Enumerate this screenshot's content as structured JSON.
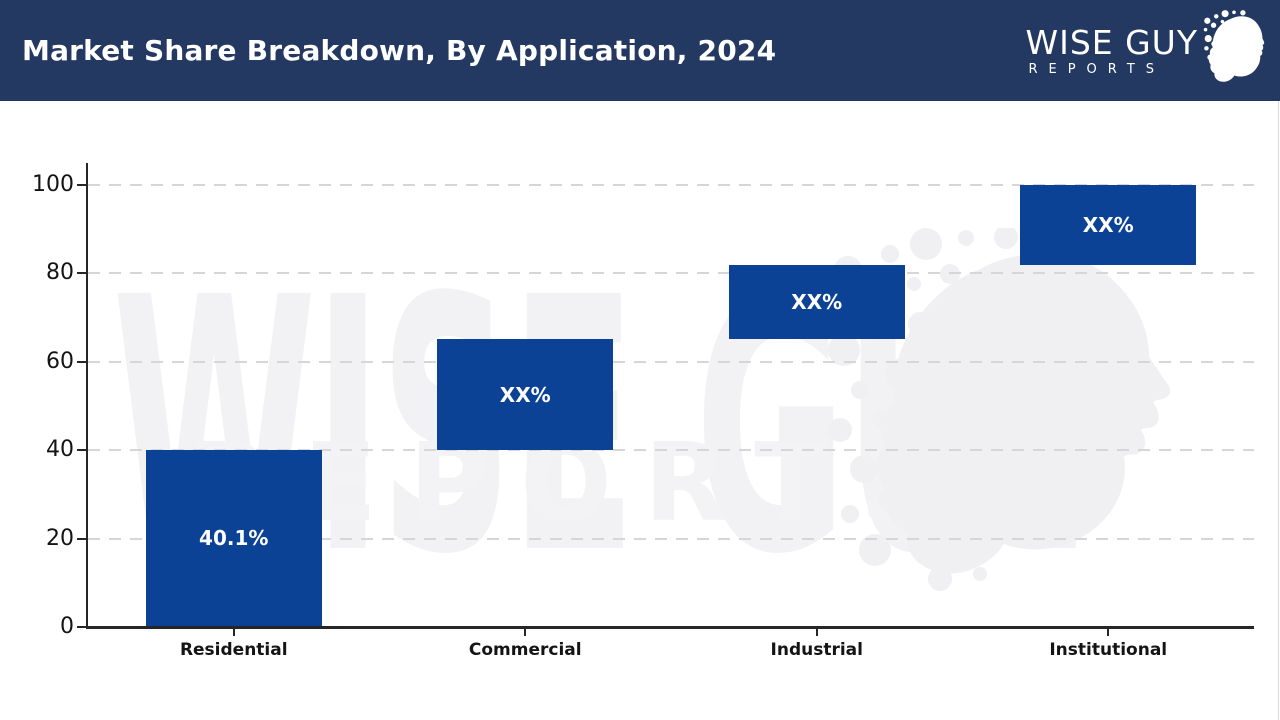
{
  "header": {
    "title": "Market Share Breakdown, By Application, 2024",
    "logo": {
      "line1": "WISE GUY",
      "line2": "REPORTS"
    }
  },
  "watermark": {
    "line1": "WISE GUY",
    "line2": "REPORTS"
  },
  "chart_data": {
    "type": "bar",
    "subtype": "floating-waterfall",
    "title": "Market Share Breakdown, By Application, 2024",
    "categories": [
      "Residential",
      "Commercial",
      "Industrial",
      "Institutional"
    ],
    "series": [
      {
        "name": "Market share",
        "unit": "%",
        "segments": [
          {
            "category": "Residential",
            "start": 0,
            "end": 40.1,
            "value": 40.1,
            "label": "40.1%"
          },
          {
            "category": "Commercial",
            "start": 40.1,
            "end": 65.1,
            "value": 25.0,
            "label": "XX%"
          },
          {
            "category": "Industrial",
            "start": 65.1,
            "end": 81.8,
            "value": 16.7,
            "label": "XX%"
          },
          {
            "category": "Institutional",
            "start": 81.8,
            "end": 100,
            "value": 18.2,
            "label": "XX%"
          }
        ]
      }
    ],
    "xlabel": "",
    "ylabel": "",
    "ylim": [
      0,
      100
    ],
    "yticks": [
      0,
      20,
      40,
      60,
      80,
      100
    ],
    "grid": "horizontal-dashed",
    "legend": "none",
    "colors": {
      "header_bg": "#243962",
      "bar": "#0b4295",
      "bar_label": "#ffffff",
      "axis": "#262626",
      "tick_label": "#141414",
      "grid": "#d6d6d9",
      "watermark": "#f2f2f5"
    }
  }
}
